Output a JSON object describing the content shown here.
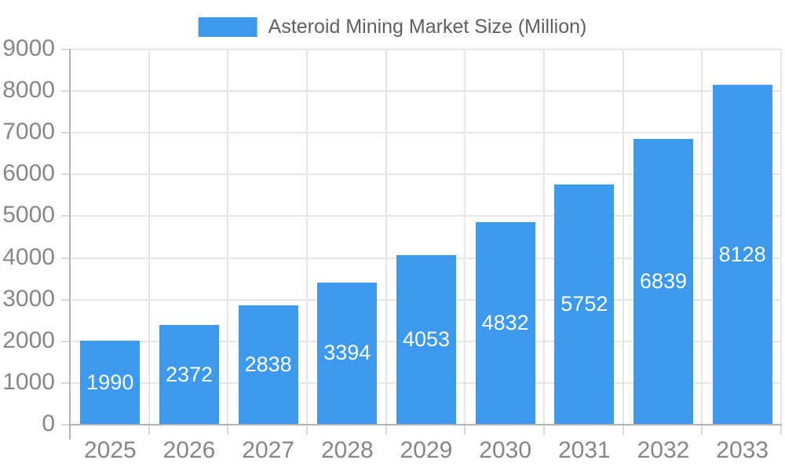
{
  "legend": {
    "label": "Asteroid Mining Market Size (Million)"
  },
  "chart_data": {
    "type": "bar",
    "title": "Asteroid Mining Market Size (Million)",
    "categories": [
      "2025",
      "2026",
      "2027",
      "2028",
      "2029",
      "2030",
      "2031",
      "2032",
      "2033"
    ],
    "values": [
      1990,
      2372,
      2838,
      3394,
      4053,
      4832,
      5752,
      6839,
      8128
    ],
    "xlabel": "",
    "ylabel": "",
    "ylim": [
      0,
      9000
    ],
    "ytick_step": 1000,
    "ytick_labels": [
      "0",
      "1000",
      "2000",
      "3000",
      "4000",
      "5000",
      "6000",
      "7000",
      "8000",
      "9000"
    ],
    "grid": true,
    "legend_position": "top",
    "value_labels": "inside-center-white"
  },
  "colors": {
    "accent": "#3C99ED",
    "bar_value_label": "#FFFFFF",
    "tick_label": "#878787",
    "legend_label": "#5F5F5F",
    "gridline": "#E6E6E6",
    "axis_line": "#B3B3B3",
    "tick_mark": "#D9D9D9",
    "background": "#FFFFFF"
  }
}
